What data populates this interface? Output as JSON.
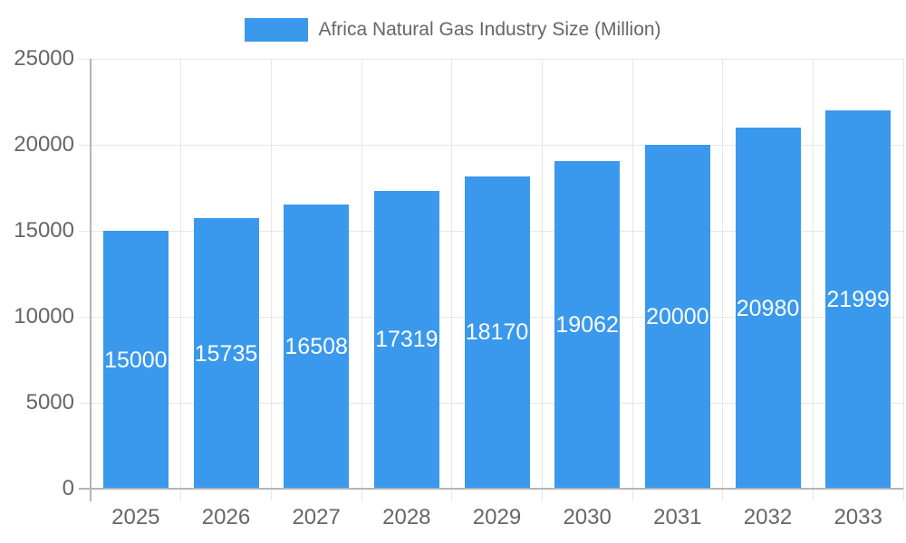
{
  "legend": {
    "label": "Africa Natural Gas Industry Size (Million)"
  },
  "colors": {
    "bar": "#3A99EC",
    "grid_line": "#E6E6E6",
    "zero_line": "#B5B5B5",
    "tick_text": "#666666",
    "legend_text": "#666666",
    "bar_value_text": "#FFFFFF",
    "background": "#FFFFFF"
  },
  "chart_data": {
    "type": "bar",
    "title": "Africa Natural Gas Industry Size (Million)",
    "categories": [
      "2025",
      "2026",
      "2027",
      "2028",
      "2029",
      "2030",
      "2031",
      "2032",
      "2033"
    ],
    "series": [
      {
        "name": "Africa Natural Gas Industry Size (Million)",
        "values": [
          15000,
          15735,
          16508,
          17319,
          18170,
          19062,
          20000,
          20980,
          21999
        ]
      }
    ],
    "value_labels": [
      "15000",
      "15735",
      "16508",
      "17319",
      "18170",
      "19062",
      "20000",
      "20980",
      "21999"
    ],
    "xlabel": "",
    "ylabel": "",
    "ylim": [
      0,
      25000
    ],
    "yticks": [
      0,
      5000,
      10000,
      15000,
      20000,
      25000
    ],
    "ytick_labels": [
      "0",
      "5000",
      "10000",
      "15000",
      "20000",
      "25000"
    ],
    "grid": true,
    "legend_position": "top",
    "value_label_placement": "inside-center"
  }
}
